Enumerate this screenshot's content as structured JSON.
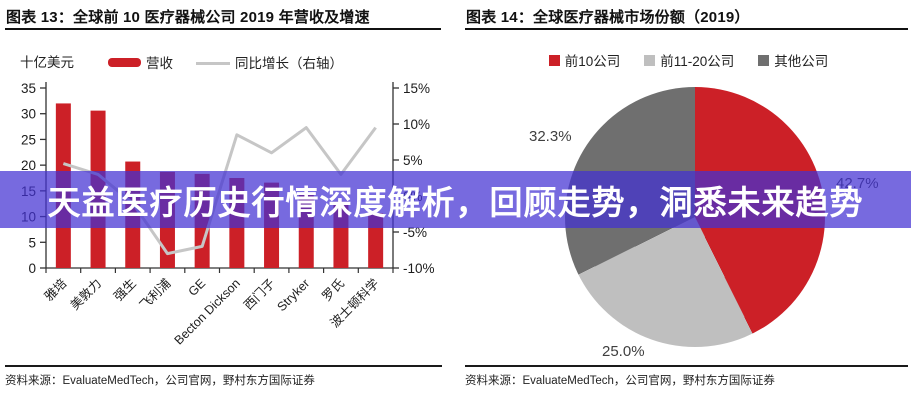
{
  "banner": {
    "text": "天益医疗历史行情深度解析，回顾走势，洞悉未来趋势",
    "bg_color": "rgba(66,48,211,0.72)",
    "text_color": "#ffffff"
  },
  "figure13": {
    "title": "图表 13：全球前 10 医疗器械公司 2019 年营收及增速",
    "unit_label": "十亿美元",
    "legend": [
      {
        "label": "营收",
        "type": "bar",
        "color": "#cc2027"
      },
      {
        "label": "同比增长（右轴）",
        "type": "line",
        "color": "#c6c6c6"
      }
    ],
    "source": "资料来源：EvaluateMedTech，公司官网，野村东方国际证券"
  },
  "figure14": {
    "title": "图表 14：全球医疗器械市场份额（2019）",
    "legend": [
      {
        "label": "前10公司",
        "color": "#cc2027"
      },
      {
        "label": "前11-20公司",
        "color": "#bfbfbf"
      },
      {
        "label": "其他公司",
        "color": "#6f6f6f"
      }
    ],
    "source": "资料来源：EvaluateMedTech，公司官网，野村东方国际证券"
  },
  "chart_data": [
    {
      "type": "bar",
      "title": "全球前 10 医疗器械公司 2019 年营收及增速",
      "categories": [
        "雅培",
        "美敦力",
        "强生",
        "飞利浦",
        "GE",
        "Becton Dickson",
        "西门子",
        "Stryker",
        "罗氏",
        "波士顿科学"
      ],
      "series": [
        {
          "name": "营收",
          "type": "bar",
          "axis": "left",
          "color": "#cc2027",
          "values": [
            32.0,
            30.6,
            20.7,
            18.7,
            18.3,
            17.5,
            16.6,
            14.5,
            12.9,
            10.7
          ]
        },
        {
          "name": "同比增长（右轴）",
          "type": "line",
          "axis": "right",
          "color": "#c6c6c6",
          "values": [
            4.5,
            3.0,
            -1.0,
            -8.0,
            -7.0,
            8.5,
            6.0,
            9.5,
            3.0,
            9.5
          ]
        }
      ],
      "left_axis": {
        "label": "十亿美元",
        "ticks": [
          35,
          30,
          25,
          20,
          15,
          10,
          5,
          0
        ],
        "range": [
          0,
          35
        ]
      },
      "right_axis": {
        "ticks": [
          "15%",
          "10%",
          "5%",
          "0%",
          "-5%",
          "-10%"
        ],
        "range": [
          -10,
          15
        ]
      },
      "grid": false,
      "legend_position": "top"
    },
    {
      "type": "pie",
      "title": "全球医疗器械市场份额（2019）",
      "slices": [
        {
          "label": "前10公司",
          "value": 42.7,
          "display": "42.7%",
          "color": "#cc2027"
        },
        {
          "label": "前11-20公司",
          "value": 25.0,
          "display": "25.0%",
          "color": "#bfbfbf"
        },
        {
          "label": "其他公司",
          "value": 32.3,
          "display": "32.3%",
          "color": "#6f6f6f"
        }
      ],
      "start_angle_deg": 0,
      "direction": "clockwise",
      "legend_position": "top"
    }
  ]
}
